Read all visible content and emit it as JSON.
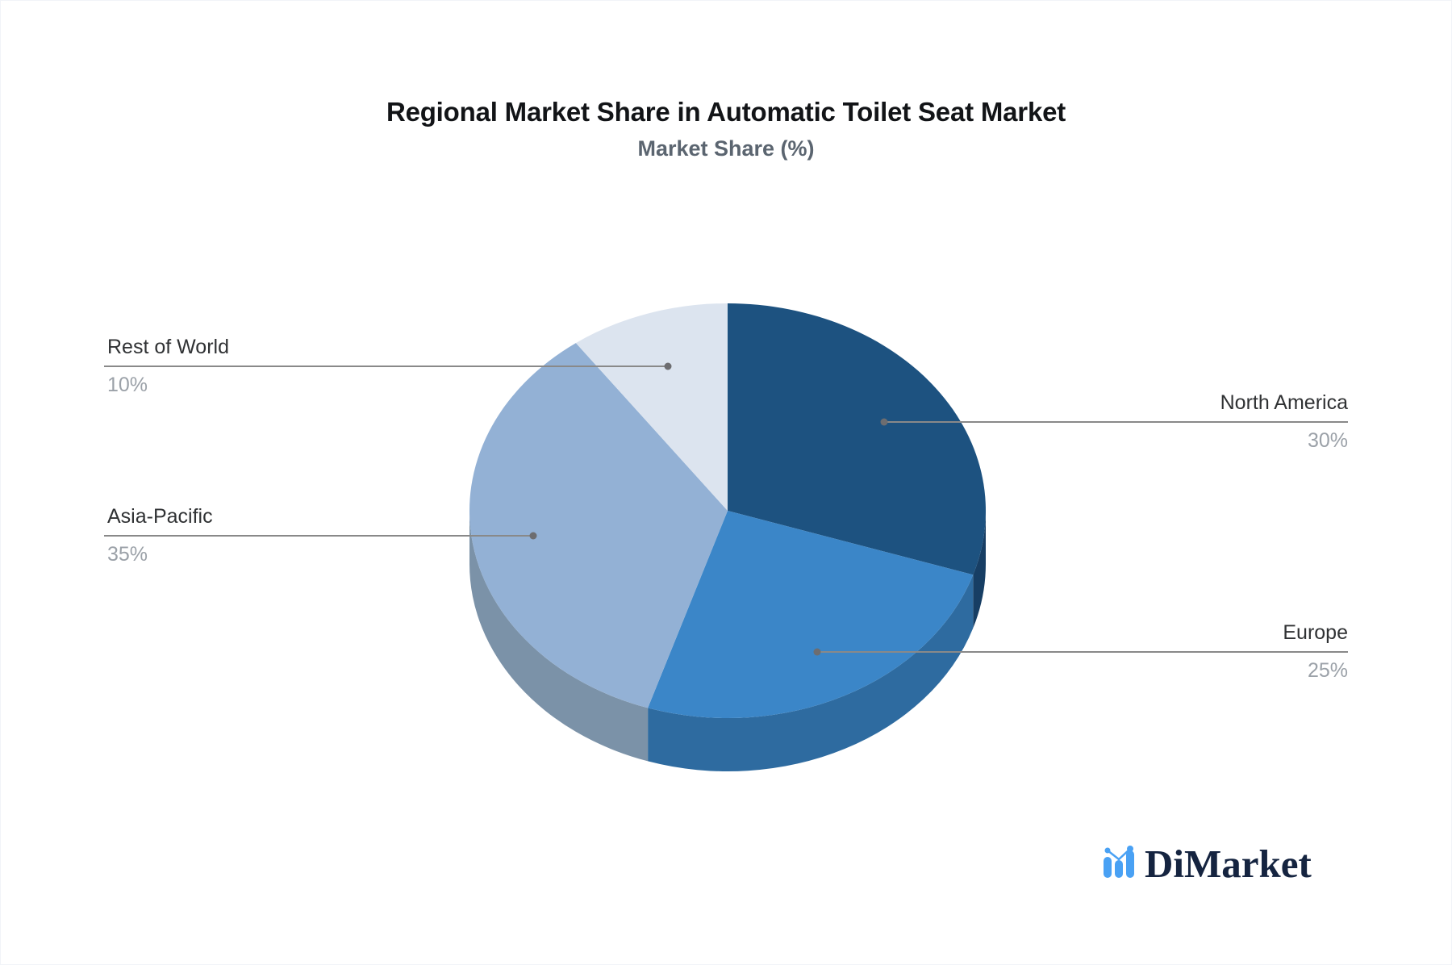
{
  "title": "Regional Market Share in Automatic Toilet Seat Market",
  "subtitle": "Market Share (%)",
  "chart_data": {
    "type": "pie",
    "style": "3d",
    "title": "Regional Market Share in Automatic Toilet Seat Market",
    "subtitle": "Market Share (%)",
    "unit": "%",
    "start_angle_deg": 0,
    "direction": "clockwise",
    "labels_position": "outside",
    "legend": "none",
    "segments": [
      {
        "label": "North America",
        "value": 30,
        "display": "30%",
        "color": "#1d5280",
        "side_color": "#173e64"
      },
      {
        "label": "Europe",
        "value": 25,
        "display": "25%",
        "color": "#3b86c8",
        "side_color": "#2e6ba0"
      },
      {
        "label": "Asia-Pacific",
        "value": 35,
        "display": "35%",
        "color": "#93b1d5",
        "side_color": "#7b92a8"
      },
      {
        "label": "Rest of World",
        "value": 10,
        "display": "10%",
        "color": "#dce4ef",
        "side_color": "#c7d0dd"
      }
    ]
  },
  "colors": {
    "background": "#ffffff",
    "title": "#121417",
    "subtitle": "#5b6570",
    "label_text": "#303234",
    "value_text": "#9ba1a8",
    "leader_line": "#898989",
    "leader_dot": "#6d6d70",
    "logo_icon": "#49a1f4",
    "logo_text": "#152440"
  },
  "logo": {
    "text": "DiMarket"
  }
}
